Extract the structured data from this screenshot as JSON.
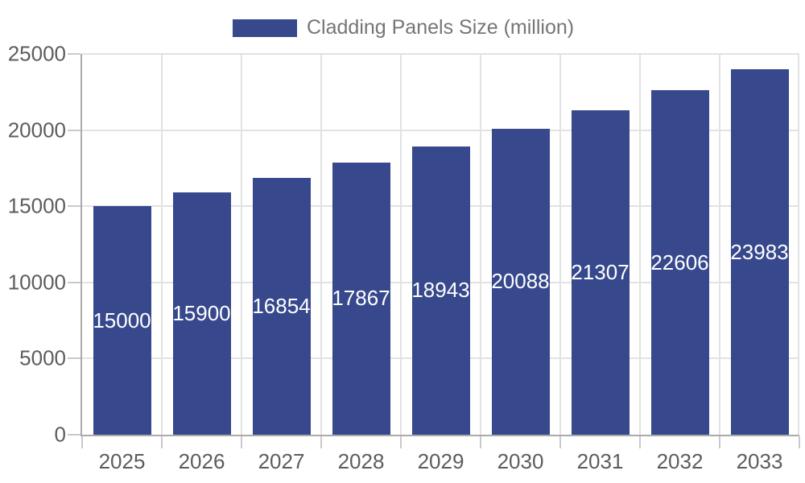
{
  "chart_data": {
    "type": "bar",
    "title": "Cladding Panels Size (million)",
    "categories": [
      "2025",
      "2026",
      "2027",
      "2028",
      "2029",
      "2030",
      "2031",
      "2032",
      "2033"
    ],
    "values": [
      15000,
      15900,
      16854,
      17867,
      18943,
      20088,
      21307,
      22606,
      23983
    ],
    "xlabel": "",
    "ylabel": "",
    "ylim": [
      0,
      25000
    ],
    "yticks": [
      0,
      5000,
      10000,
      15000,
      20000,
      25000
    ],
    "grid": true,
    "legend_position": "top",
    "bar_value_labels_inside": true,
    "colors": {
      "bar": "#37488C",
      "bar_label": "#FFFFFF",
      "axis": "#ABABAB",
      "grid": "#E2E2E2",
      "tick": "#C9C9C9",
      "tick_label": "#5D5D5D",
      "legend_text": "#757575",
      "background": "#FFFFFF"
    }
  }
}
